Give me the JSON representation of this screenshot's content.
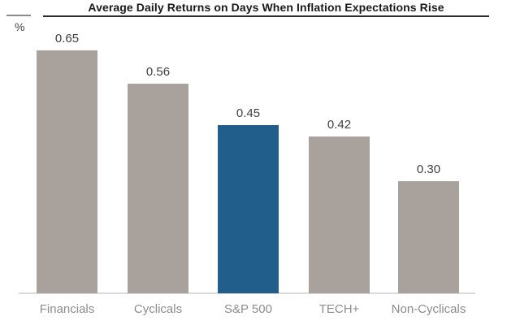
{
  "chart": {
    "title": "Average Daily Returns on Days When Inflation Expectations Rise",
    "unit_label": "%"
  },
  "chart_data": {
    "type": "bar",
    "title": "Average Daily Returns on Days When Inflation Expectations Rise",
    "xlabel": "",
    "ylabel": "%",
    "categories": [
      "Financials",
      "Cyclicals",
      "S&P 500",
      "TECH+",
      "Non-Cyclicals"
    ],
    "values": [
      0.65,
      0.56,
      0.45,
      0.42,
      0.3
    ],
    "value_labels": [
      "0.65",
      "0.56",
      "0.45",
      "0.42",
      "0.30"
    ],
    "ylim": [
      0,
      0.78
    ],
    "grid": false,
    "legend": false,
    "axis_lines": "baseline-only",
    "highlight_category": "S&P 500",
    "colors": {
      "default_bar": "#A9A19B",
      "highlight_bar": "#215E8C",
      "title_text": "#1A1A1A",
      "title_rule": "#2B2B2B",
      "value_label": "#404040",
      "category_label": "#8C8C8C",
      "baseline": "#DCDAD8",
      "background": "#FFFFFF"
    }
  }
}
